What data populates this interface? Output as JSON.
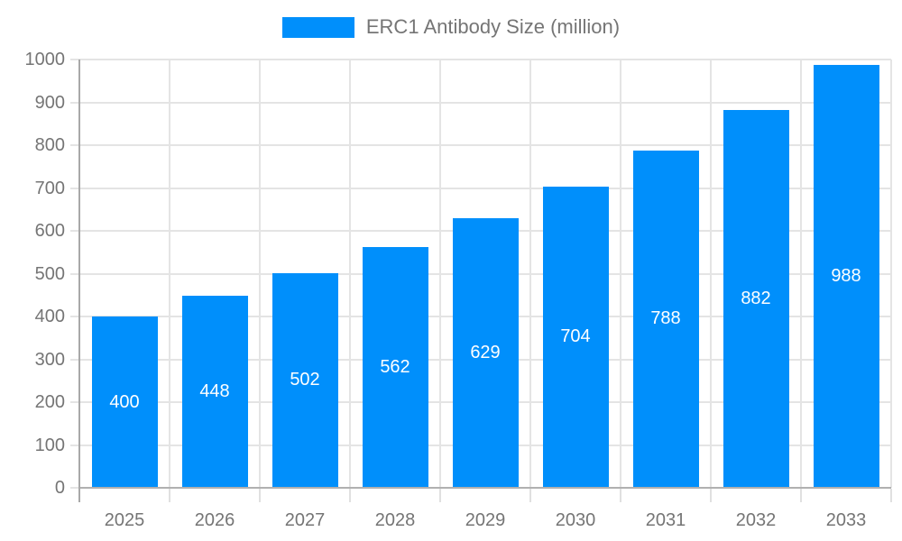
{
  "legend": {
    "label": "ERC1 Antibody Size (million)"
  },
  "colors": {
    "bar": "#008FFB",
    "grid_line": "#e4e4e4",
    "axis_line": "#a8a8a8",
    "x_axis_line": "#b0b0b0",
    "tick": "#e0e0e0",
    "axis_text": "#757575",
    "data_label_text": "#ffffff",
    "background": "#ffffff"
  },
  "chart_data": {
    "type": "bar",
    "title": "ERC1 Antibody Size (million)",
    "categories": [
      "2025",
      "2026",
      "2027",
      "2028",
      "2029",
      "2030",
      "2031",
      "2032",
      "2033"
    ],
    "series": [
      {
        "name": "ERC1 Antibody Size (million)",
        "values": [
          400,
          448,
          502,
          562,
          629,
          704,
          788,
          882,
          988
        ]
      }
    ],
    "data_labels": [
      400,
      448,
      502,
      562,
      629,
      704,
      788,
      882,
      988
    ],
    "xlabel": "",
    "ylabel": "",
    "ylim": [
      0,
      1000
    ],
    "ytick_step": 100,
    "ytick_labels": [
      "0",
      "100",
      "200",
      "300",
      "400",
      "500",
      "600",
      "700",
      "800",
      "900",
      "1000"
    ],
    "grid": "horizontal-and-vertical",
    "legend_position": "top",
    "data_label_position": "center-inside-bar"
  }
}
